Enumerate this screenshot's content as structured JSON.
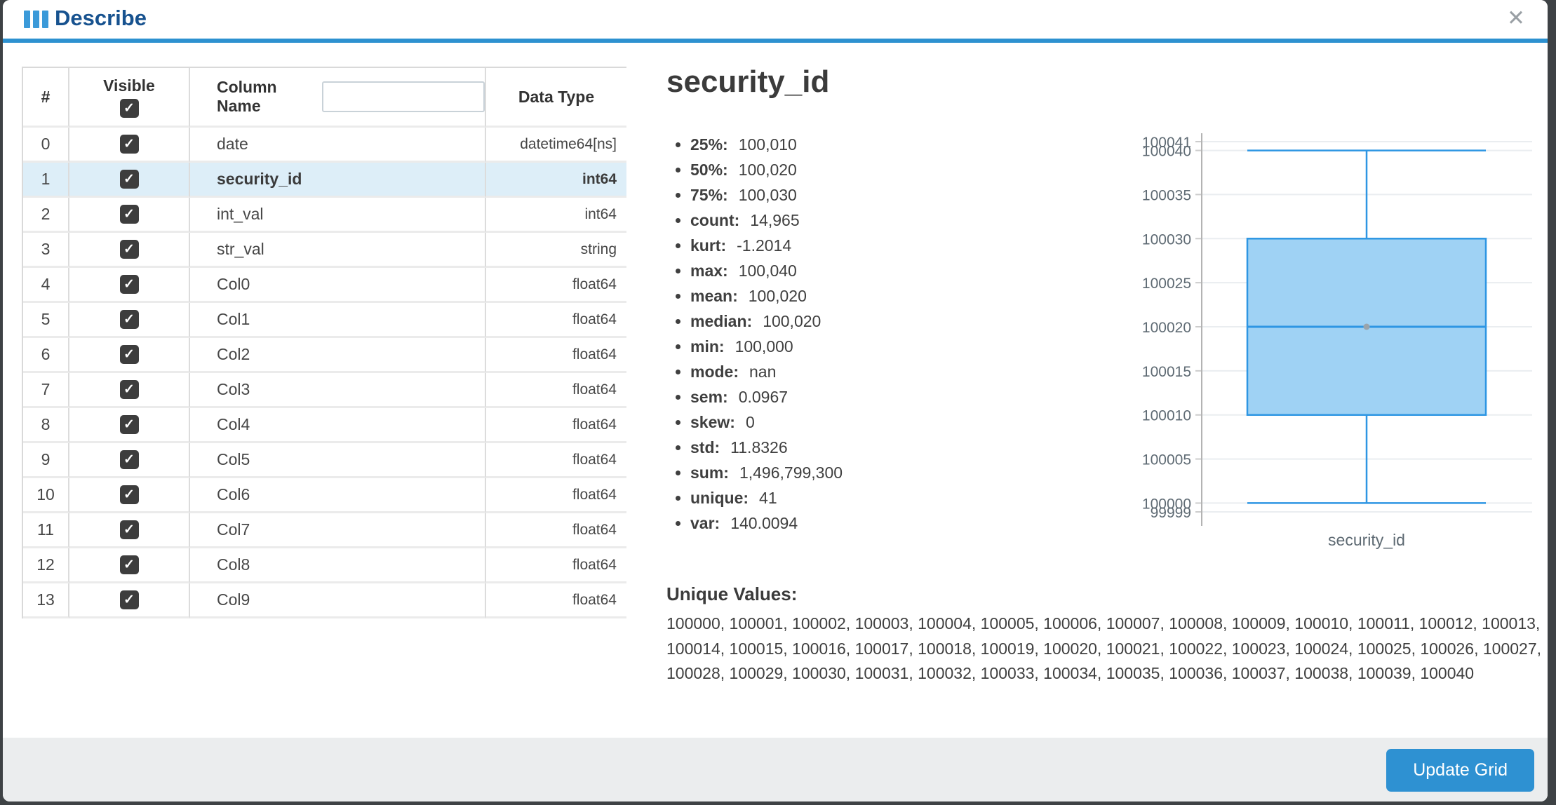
{
  "modal": {
    "title": "Describe"
  },
  "icons": {
    "close": "✕",
    "checkbox_check": "✓"
  },
  "table": {
    "headers": {
      "index": "#",
      "visible": "Visible",
      "column_name": "Column Name",
      "data_type": "Data Type"
    },
    "filter_value": "",
    "select_all_checked": true,
    "rows": [
      {
        "index": "0",
        "visible": true,
        "name": "date",
        "dtype": "datetime64[ns]",
        "selected": false
      },
      {
        "index": "1",
        "visible": true,
        "name": "security_id",
        "dtype": "int64",
        "selected": true
      },
      {
        "index": "2",
        "visible": true,
        "name": "int_val",
        "dtype": "int64",
        "selected": false
      },
      {
        "index": "3",
        "visible": true,
        "name": "str_val",
        "dtype": "string",
        "selected": false
      },
      {
        "index": "4",
        "visible": true,
        "name": "Col0",
        "dtype": "float64",
        "selected": false
      },
      {
        "index": "5",
        "visible": true,
        "name": "Col1",
        "dtype": "float64",
        "selected": false
      },
      {
        "index": "6",
        "visible": true,
        "name": "Col2",
        "dtype": "float64",
        "selected": false
      },
      {
        "index": "7",
        "visible": true,
        "name": "Col3",
        "dtype": "float64",
        "selected": false
      },
      {
        "index": "8",
        "visible": true,
        "name": "Col4",
        "dtype": "float64",
        "selected": false
      },
      {
        "index": "9",
        "visible": true,
        "name": "Col5",
        "dtype": "float64",
        "selected": false
      },
      {
        "index": "10",
        "visible": true,
        "name": "Col6",
        "dtype": "float64",
        "selected": false
      },
      {
        "index": "11",
        "visible": true,
        "name": "Col7",
        "dtype": "float64",
        "selected": false
      },
      {
        "index": "12",
        "visible": true,
        "name": "Col8",
        "dtype": "float64",
        "selected": false
      },
      {
        "index": "13",
        "visible": true,
        "name": "Col9",
        "dtype": "float64",
        "selected": false
      }
    ]
  },
  "details": {
    "column_title": "security_id",
    "stats": [
      {
        "label": "25%",
        "value": "100,010"
      },
      {
        "label": "50%",
        "value": "100,020"
      },
      {
        "label": "75%",
        "value": "100,030"
      },
      {
        "label": "count",
        "value": "14,965"
      },
      {
        "label": "kurt",
        "value": "-1.2014"
      },
      {
        "label": "max",
        "value": "100,040"
      },
      {
        "label": "mean",
        "value": "100,020"
      },
      {
        "label": "median",
        "value": "100,020"
      },
      {
        "label": "min",
        "value": "100,000"
      },
      {
        "label": "mode",
        "value": "nan"
      },
      {
        "label": "sem",
        "value": "0.0967"
      },
      {
        "label": "skew",
        "value": "0"
      },
      {
        "label": "std",
        "value": "11.8326"
      },
      {
        "label": "sum",
        "value": "1,496,799,300"
      },
      {
        "label": "unique",
        "value": "41"
      },
      {
        "label": "var",
        "value": "140.0094"
      }
    ],
    "unique_values_label": "Unique Values:",
    "unique_values": "100000, 100001, 100002, 100003, 100004, 100005, 100006, 100007, 100008, 100009, 100010, 100011, 100012, 100013, 100014, 100015, 100016, 100017, 100018, 100019, 100020, 100021, 100022, 100023, 100024, 100025, 100026, 100027, 100028, 100029, 100030, 100031, 100032, 100033, 100034, 100035, 100036, 100037, 100038, 100039, 100040"
  },
  "chart_data": {
    "type": "box",
    "series": [
      {
        "name": "security_id",
        "min": 100000,
        "q1": 100010,
        "median": 100020,
        "q3": 100030,
        "max": 100040,
        "mean": 100020
      }
    ],
    "yticks": [
      100041,
      100040,
      100035,
      100030,
      100025,
      100020,
      100015,
      100010,
      100005,
      100000,
      99999
    ],
    "ylim": [
      99999,
      100041
    ],
    "xlabel": "security_id",
    "grid": true,
    "legend": "none"
  },
  "footer": {
    "update_button": "Update Grid"
  },
  "colors": {
    "accent": "#2e91d2",
    "header_title": "#17528f",
    "divider": "#2d91d0",
    "selected_row": "#ddeef8",
    "box_fill": "#9fd2f4",
    "box_stroke": "#2e96e3",
    "mean_dot": "#9aa4ab",
    "gridline": "#eaedf0",
    "axis": "#b3b3b3",
    "tick_text": "#5e6a73",
    "footer_bg": "#ebedee",
    "page_bg": "#3e4245"
  }
}
